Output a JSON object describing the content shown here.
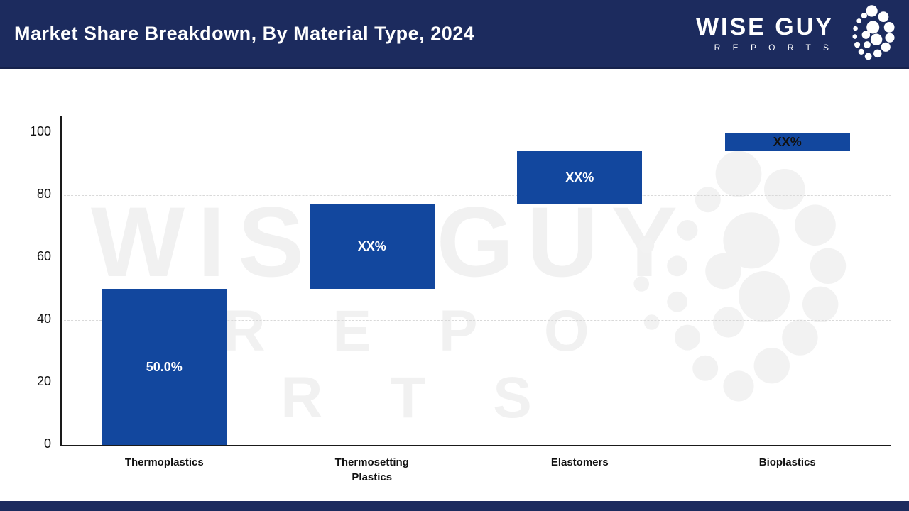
{
  "header": {
    "title": "Market Share Breakdown, By Material Type, 2024",
    "brand_name": "WISE GUY",
    "brand_sub": "R E P O R T S"
  },
  "watermark": {
    "line1": "WISE GUY",
    "line2": "R E P O R T S"
  },
  "chart_data": {
    "type": "bar",
    "variant": "floating-segment-waterfall",
    "title": "Market Share Breakdown, By Material Type, 2024",
    "categories": [
      "Thermoplastics",
      "Thermosetting Plastics",
      "Elastomers",
      "Bioplastics"
    ],
    "bars": [
      {
        "category": "Thermoplastics",
        "start": 0,
        "end": 50,
        "label": "50.0%",
        "label_color": "#ffffff"
      },
      {
        "category": "Thermosetting Plastics",
        "start": 50,
        "end": 77,
        "label": "XX%",
        "label_color": "#ffffff"
      },
      {
        "category": "Elastomers",
        "start": 77,
        "end": 94,
        "label": "XX%",
        "label_color": "#ffffff"
      },
      {
        "category": "Bioplastics",
        "start": 94,
        "end": 100,
        "label": "XX%",
        "label_color": "#111111"
      }
    ],
    "ylim": [
      0,
      100
    ],
    "yticks": [
      0,
      20,
      40,
      60,
      80,
      100
    ],
    "bar_color": "#12479e",
    "grid": "dashed-horizontal",
    "legend": "none",
    "xlabel": "",
    "ylabel": ""
  },
  "colors": {
    "header_bg": "#1c2b5e",
    "footer_bg": "#1c2b5e",
    "bar": "#12479e",
    "watermark": "#f1f1f1",
    "axis": "#1a1a1a"
  }
}
